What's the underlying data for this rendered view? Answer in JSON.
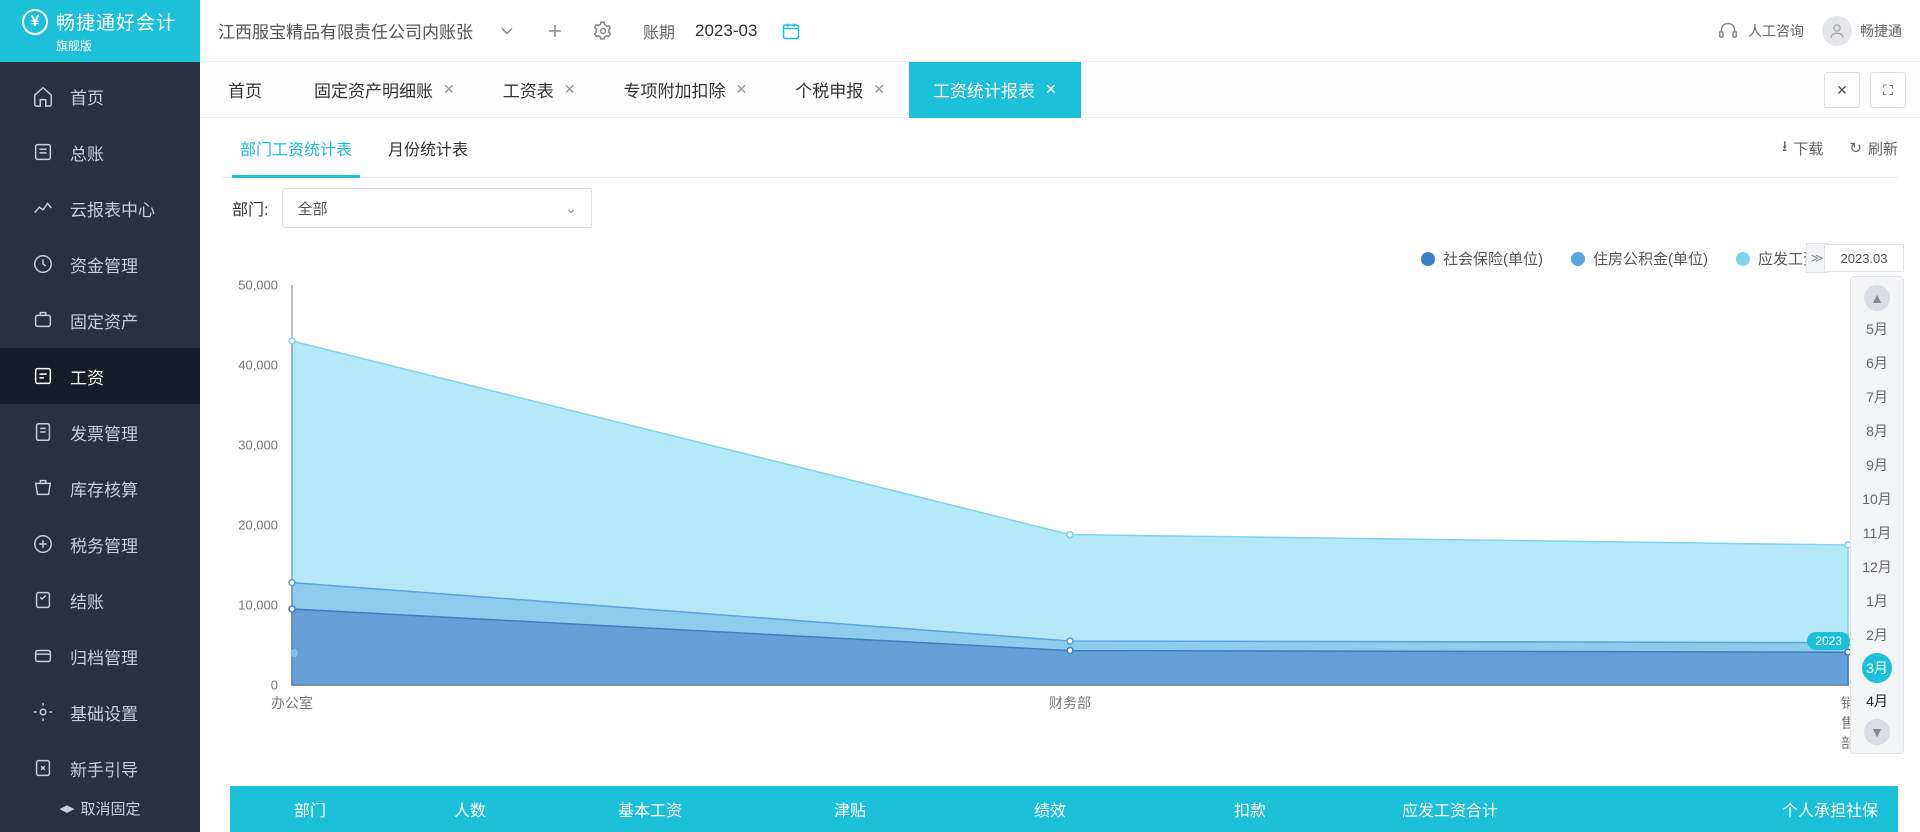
{
  "brand": {
    "title": "畅捷通好会计",
    "sub": "旗舰版"
  },
  "sidebar": {
    "items": [
      {
        "label": "首页"
      },
      {
        "label": "总账"
      },
      {
        "label": "云报表中心"
      },
      {
        "label": "资金管理"
      },
      {
        "label": "固定资产"
      },
      {
        "label": "工资"
      },
      {
        "label": "发票管理"
      },
      {
        "label": "库存核算"
      },
      {
        "label": "税务管理"
      },
      {
        "label": "结账"
      },
      {
        "label": "归档管理"
      },
      {
        "label": "基础设置"
      },
      {
        "label": "新手引导"
      }
    ],
    "active_index": 5,
    "pin_label": "取消固定"
  },
  "topbar": {
    "company": "江西服宝精品有限责任公司内账张",
    "period_label": "账期",
    "period_value": "2023-03",
    "help_label": "人工咨询",
    "user_name": "畅捷通"
  },
  "tabs": {
    "items": [
      {
        "label": "首页",
        "closable": false
      },
      {
        "label": "固定资产明细账",
        "closable": true
      },
      {
        "label": "工资表",
        "closable": true
      },
      {
        "label": "专项附加扣除",
        "closable": true
      },
      {
        "label": "个税申报",
        "closable": true
      },
      {
        "label": "工资统计报表",
        "closable": true
      }
    ],
    "active_index": 5
  },
  "subtabs": {
    "items": [
      {
        "label": "部门工资统计表"
      },
      {
        "label": "月份统计表"
      }
    ],
    "active_index": 0,
    "download_label": "下载",
    "refresh_label": "刷新"
  },
  "filter": {
    "label": "部门:",
    "value": "全部"
  },
  "chart": {
    "type": "area",
    "categories": [
      "办公室",
      "财务部",
      "销售部"
    ],
    "series": [
      {
        "name": "社会保险(单位)",
        "color": "#3e80c3",
        "fill": "#5a93ce",
        "fillOpacity": 0.78,
        "values": [
          9500,
          4300,
          4100
        ]
      },
      {
        "name": "住房公积金(单位)",
        "color": "#5aa4e0",
        "fill": "#6cb2ea",
        "fillOpacity": 0.55,
        "values": [
          12800,
          5500,
          5300
        ]
      },
      {
        "name": "应发工资总额",
        "color": "#7dd4ed",
        "fill": "#88daf1",
        "fillOpacity": 0.62,
        "values": [
          43000,
          18800,
          17500
        ]
      }
    ],
    "y": {
      "min": 0,
      "max": 50000,
      "step": 10000,
      "labels": [
        "0",
        "10,000",
        "20,000",
        "30,000",
        "40,000",
        "50,000"
      ]
    },
    "background": "#ffffff",
    "axis_text_color": "#777777",
    "axis_fontsize": 13,
    "legend_fontsize": 15,
    "marker_radius": 3
  },
  "table": {
    "headers": [
      "部门",
      "人数",
      "基本工资",
      "津贴",
      "绩效",
      "扣款",
      "应发工资合计"
    ],
    "right_header": "个人承担社保"
  },
  "month_panel": {
    "period": "2023.03",
    "year_badge": "2023",
    "months": [
      "5月",
      "6月",
      "7月",
      "8月",
      "9月",
      "10月",
      "11月",
      "12月",
      "1月",
      "2月",
      "3月",
      "4月"
    ],
    "selected_index": 10,
    "dark_index": 11
  }
}
